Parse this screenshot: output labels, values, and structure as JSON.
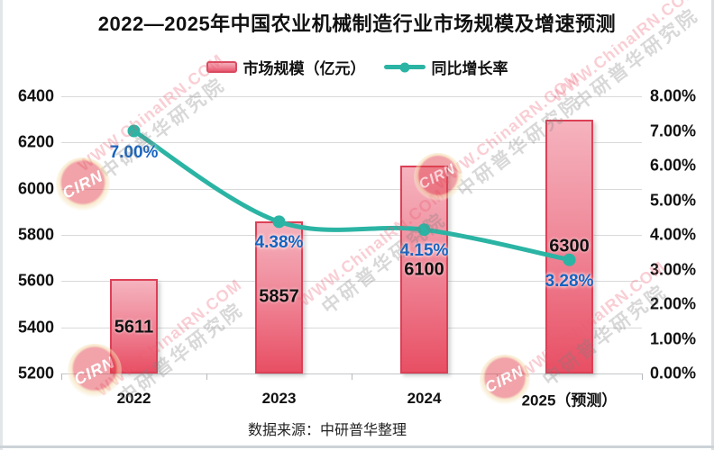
{
  "chart_data": {
    "type": "bar+line",
    "title": "2022—2025年中国农业机械制造行业市场规模及增速预测",
    "source": "数据来源：中研普华整理",
    "categories": [
      "2022",
      "2023",
      "2024",
      "2025（预测）"
    ],
    "series": [
      {
        "name": "市场规模（亿元）",
        "type": "bar",
        "axis": "left",
        "values": [
          5611,
          5857,
          6100,
          6300
        ],
        "labels": [
          "5611",
          "5857",
          "6100",
          "6300"
        ]
      },
      {
        "name": "同比增长率",
        "type": "line",
        "axis": "right",
        "values": [
          7.0,
          4.38,
          4.15,
          3.28
        ],
        "labels": [
          "7.00%",
          "4.38%",
          "4.15%",
          "3.28%"
        ]
      }
    ],
    "left_axis": {
      "min": 5200,
      "max": 6400,
      "step": 200,
      "ticks": [
        "6400",
        "6200",
        "6000",
        "5800",
        "5600",
        "5400",
        "5200"
      ]
    },
    "right_axis": {
      "min": 0,
      "max": 8,
      "step": 1,
      "ticks": [
        "8.00%",
        "7.00%",
        "6.00%",
        "5.00%",
        "4.00%",
        "3.00%",
        "2.00%",
        "1.00%",
        "0.00%"
      ]
    },
    "grid": true,
    "legend_position": "top"
  },
  "colors": {
    "bar_top": "#f5b3be",
    "bar_bottom": "#e84f64",
    "bar_border": "#dc4056",
    "line": "#2bb4a4",
    "pct_label": "#1563c0",
    "gridline": "#d9d9d9"
  },
  "watermark": {
    "line1": "WWW.ChinaIRN.COM",
    "line2": "中研普华研究院",
    "logo": "CIRN"
  }
}
